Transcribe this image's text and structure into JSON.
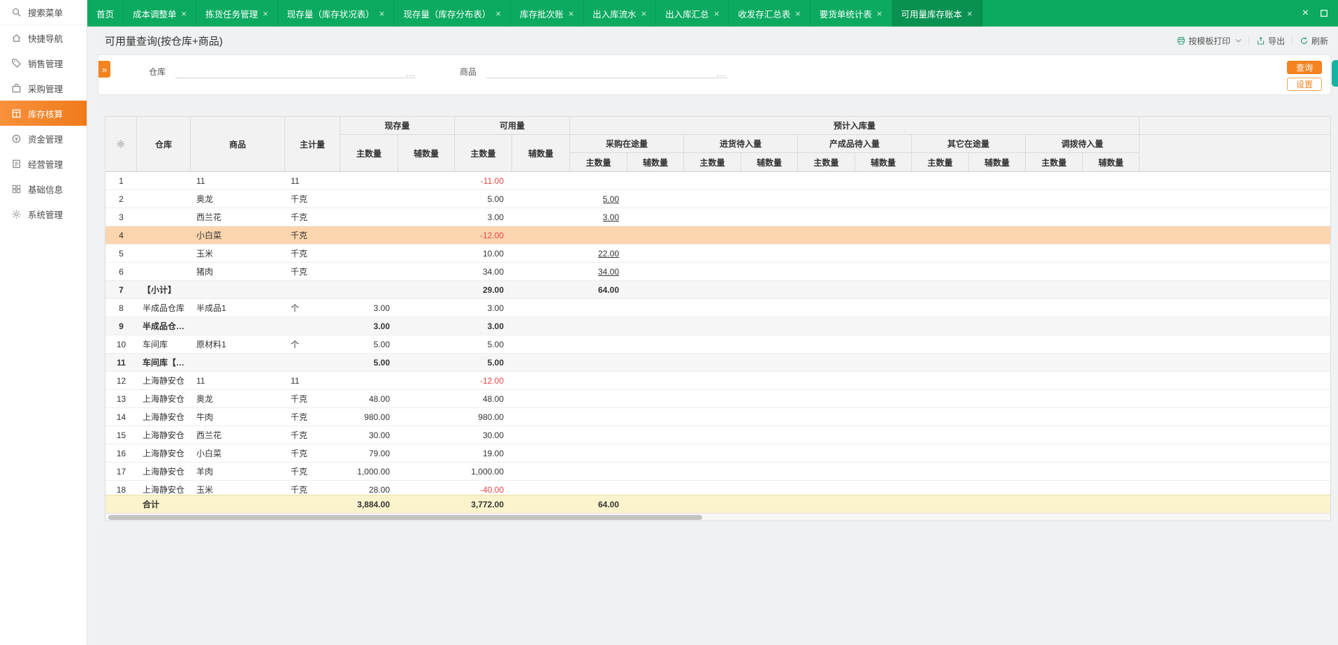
{
  "colors": {
    "topbar_green": "#0caa60",
    "active_tab_green": "#089150",
    "accent_orange": "#f5831f",
    "selected_row": "#fbd5ad",
    "subtotal_row_bg": "#f6f6f6",
    "total_row_bg": "#fbf3cc",
    "negative_red": "#e64444"
  },
  "topbar": {
    "close_icon": "×"
  },
  "tabs": {
    "active_index": 10,
    "close_glyph": "×",
    "items": [
      {
        "label": "首页",
        "closable": false
      },
      {
        "label": "成本调整单",
        "closable": true
      },
      {
        "label": "拣货任务管理",
        "closable": true
      },
      {
        "label": "现存量（库存状况表）",
        "closable": true
      },
      {
        "label": "现存量（库存分布表）",
        "closable": true
      },
      {
        "label": "库存批次账",
        "closable": true
      },
      {
        "label": "出入库流水",
        "closable": true
      },
      {
        "label": "出入库汇总",
        "closable": true
      },
      {
        "label": "收发存汇总表",
        "closable": true
      },
      {
        "label": "要货单统计表",
        "closable": true
      },
      {
        "label": "可用量库存账本",
        "closable": true
      }
    ]
  },
  "sidebar": {
    "items": [
      {
        "label": "搜索菜单",
        "icon": "search-icon",
        "active": false
      },
      {
        "label": "快捷导航",
        "icon": "home-icon",
        "active": false
      },
      {
        "label": "销售管理",
        "icon": "sales-icon",
        "active": false
      },
      {
        "label": "采购管理",
        "icon": "purchase-icon",
        "active": false
      },
      {
        "label": "库存核算",
        "icon": "inventory-icon",
        "active": true
      },
      {
        "label": "资金管理",
        "icon": "funds-icon",
        "active": false
      },
      {
        "label": "经营管理",
        "icon": "business-icon",
        "active": false
      },
      {
        "label": "基础信息",
        "icon": "base-info-icon",
        "active": false
      },
      {
        "label": "系统管理",
        "icon": "system-icon",
        "active": false
      }
    ]
  },
  "page_header": {
    "title": "可用量查询(按仓库+商品)",
    "print": "按模板打印",
    "export": "导出",
    "refresh": "刷新"
  },
  "filter": {
    "expand_icon": "»",
    "fields": [
      {
        "label": "仓库",
        "value": "",
        "picker": "..."
      },
      {
        "label": "商品",
        "value": "",
        "picker": "..."
      }
    ],
    "query": "查询",
    "settings": "设置"
  },
  "grid": {
    "fixed_columns": [
      "仓库",
      "商品",
      "主计量"
    ],
    "groups": [
      {
        "title": "现存量",
        "columns": [
          "主数量",
          "辅数量"
        ]
      },
      {
        "title": "可用量",
        "columns": [
          "主数量",
          "辅数量"
        ]
      },
      {
        "title": "预计入库量",
        "subgroups": [
          {
            "title": "采购在途量",
            "columns": [
              "主数量",
              "辅数量"
            ]
          },
          {
            "title": "进货待入量",
            "columns": [
              "主数量",
              "辅数量"
            ]
          },
          {
            "title": "产成品待入量",
            "columns": [
              "主数量",
              "辅数量"
            ]
          },
          {
            "title": "其它在途量",
            "columns": [
              "主数量",
              "辅数量"
            ]
          },
          {
            "title": "调拨待入量",
            "columns": [
              "主数量",
              "辅数量"
            ]
          }
        ]
      }
    ],
    "rows": [
      {
        "num": "1",
        "warehouse": "",
        "product": "11",
        "unit": "11",
        "onhand_main": "",
        "available_main": "-11.00",
        "purchase_main": "",
        "style": "normal"
      },
      {
        "num": "2",
        "warehouse": "",
        "product": "奥龙",
        "unit": "千克",
        "onhand_main": "",
        "available_main": "5.00",
        "purchase_main": "5.00",
        "purchase_link": true,
        "style": "normal"
      },
      {
        "num": "3",
        "warehouse": "",
        "product": "西兰花",
        "unit": "千克",
        "onhand_main": "",
        "available_main": "3.00",
        "purchase_main": "3.00",
        "purchase_link": true,
        "style": "normal"
      },
      {
        "num": "4",
        "warehouse": "",
        "product": "小白菜",
        "unit": "千克",
        "onhand_main": "",
        "available_main": "-12.00",
        "purchase_main": "",
        "style": "selected"
      },
      {
        "num": "5",
        "warehouse": "",
        "product": "玉米",
        "unit": "千克",
        "onhand_main": "",
        "available_main": "10.00",
        "purchase_main": "22.00",
        "purchase_link": true,
        "style": "normal"
      },
      {
        "num": "6",
        "warehouse": "",
        "product": "猪肉",
        "unit": "千克",
        "onhand_main": "",
        "available_main": "34.00",
        "purchase_main": "34.00",
        "purchase_link": true,
        "style": "normal"
      },
      {
        "num": "7",
        "warehouse": "【小计】",
        "product": "",
        "unit": "",
        "onhand_main": "",
        "available_main": "29.00",
        "purchase_main": "64.00",
        "style": "subtotal"
      },
      {
        "num": "8",
        "warehouse": "半成品仓库",
        "product": "半成品1",
        "unit": "个",
        "onhand_main": "3.00",
        "available_main": "3.00",
        "purchase_main": "",
        "style": "normal"
      },
      {
        "num": "9",
        "warehouse": "半成品仓库【小计】",
        "product": "",
        "unit": "",
        "onhand_main": "3.00",
        "available_main": "3.00",
        "purchase_main": "",
        "style": "subtotal"
      },
      {
        "num": "10",
        "warehouse": "车间库",
        "product": "原材料1",
        "unit": "个",
        "onhand_main": "5.00",
        "available_main": "5.00",
        "purchase_main": "",
        "style": "normal"
      },
      {
        "num": "11",
        "warehouse": "车间库【小计】",
        "product": "",
        "unit": "",
        "onhand_main": "5.00",
        "available_main": "5.00",
        "purchase_main": "",
        "style": "subtotal"
      },
      {
        "num": "12",
        "warehouse": "上海静安仓",
        "product": "11",
        "unit": "11",
        "onhand_main": "",
        "available_main": "-12.00",
        "purchase_main": "",
        "style": "normal"
      },
      {
        "num": "13",
        "warehouse": "上海静安仓",
        "product": "奥龙",
        "unit": "千克",
        "onhand_main": "48.00",
        "available_main": "48.00",
        "purchase_main": "",
        "style": "normal"
      },
      {
        "num": "14",
        "warehouse": "上海静安仓",
        "product": "牛肉",
        "unit": "千克",
        "onhand_main": "980.00",
        "available_main": "980.00",
        "purchase_main": "",
        "style": "normal"
      },
      {
        "num": "15",
        "warehouse": "上海静安仓",
        "product": "西兰花",
        "unit": "千克",
        "onhand_main": "30.00",
        "available_main": "30.00",
        "purchase_main": "",
        "style": "normal"
      },
      {
        "num": "16",
        "warehouse": "上海静安仓",
        "product": "小白菜",
        "unit": "千克",
        "onhand_main": "79.00",
        "available_main": "19.00",
        "purchase_main": "",
        "style": "normal"
      },
      {
        "num": "17",
        "warehouse": "上海静安仓",
        "product": "羊肉",
        "unit": "千克",
        "onhand_main": "1,000.00",
        "available_main": "1,000.00",
        "purchase_main": "",
        "style": "normal"
      },
      {
        "num": "18",
        "warehouse": "上海静安仓",
        "product": "玉米",
        "unit": "千克",
        "onhand_main": "28.00",
        "available_main": "-40.00",
        "purchase_main": "",
        "style": "normal"
      }
    ],
    "total": {
      "label": "合计",
      "onhand_main": "3,884.00",
      "available_main": "3,772.00",
      "purchase_main": "64.00"
    }
  }
}
